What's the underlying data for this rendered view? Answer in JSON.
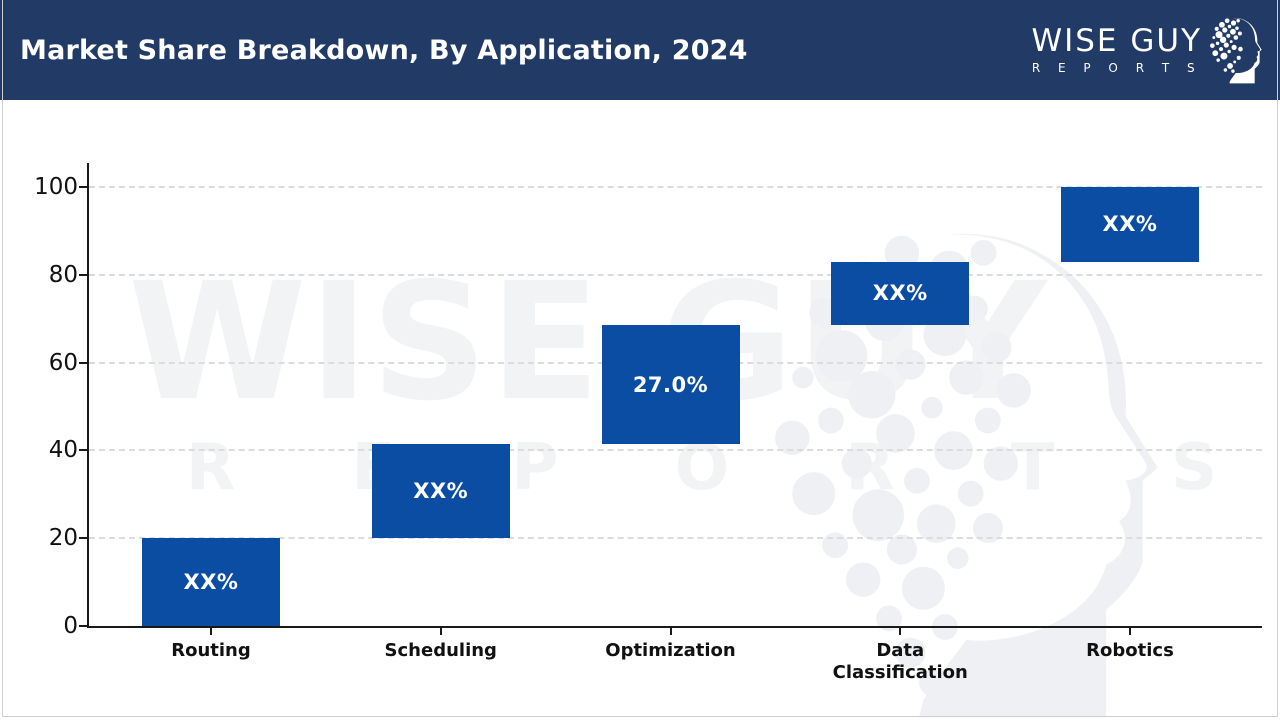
{
  "header": {
    "title": "Market Share Breakdown, By Application, 2024",
    "logo": {
      "line1": "WISE GUY",
      "line2": "R E P O R T S"
    }
  },
  "watermark": {
    "line1": "WISE GUY",
    "line2": "R E P O R T S"
  },
  "chart_data": {
    "type": "bar",
    "subtype": "floating-waterfall",
    "title": "Market Share Breakdown, By Application, 2024",
    "categories": [
      "Routing",
      "Scheduling",
      "Optimization",
      "Data Classification",
      "Robotics"
    ],
    "bars": [
      {
        "category": "Routing",
        "start": 0,
        "end": 20,
        "label": "XX%"
      },
      {
        "category": "Scheduling",
        "start": 20,
        "end": 41.5,
        "label": "XX%"
      },
      {
        "category": "Optimization",
        "start": 41.5,
        "end": 68.5,
        "label": "27.0%"
      },
      {
        "category": "Data Classification",
        "start": 68.5,
        "end": 83,
        "label": "XX%"
      },
      {
        "category": "Robotics",
        "start": 83,
        "end": 100,
        "label": "XX%"
      }
    ],
    "ylim": [
      0,
      100
    ],
    "yticks": [
      0,
      20,
      40,
      60,
      80,
      100
    ],
    "xlabel": "",
    "ylabel": "",
    "grid": "horizontal-dashed",
    "legend": "none"
  },
  "colors": {
    "header_bg": "#213a66",
    "bar": "#0b4da3",
    "gridline": "#dcdcdc",
    "axis": "#1a1a1a",
    "watermark": "#f2f3f5",
    "frame_border": "#cfcfcf",
    "bar_label_text": "#ffffff",
    "title_text": "#ffffff"
  }
}
